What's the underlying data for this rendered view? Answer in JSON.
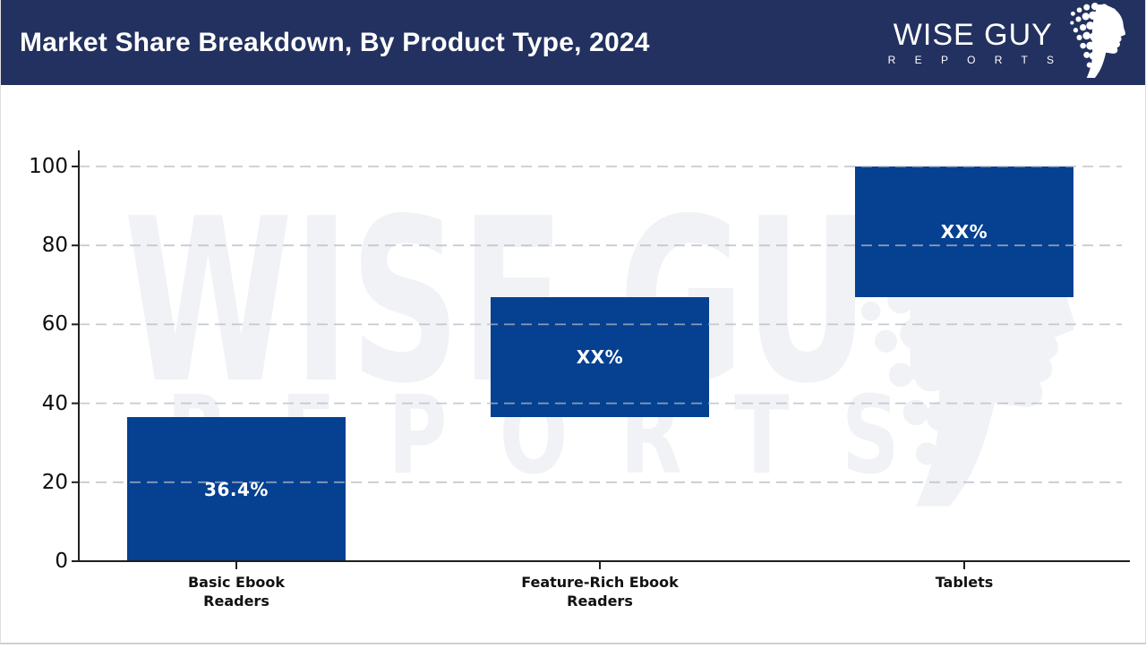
{
  "header": {
    "title": "Market Share Breakdown, By Product Type, 2024",
    "logo": {
      "name": "WISE GUY",
      "sub": "R E P O R T S"
    }
  },
  "watermark": {
    "line1": "WISE GUY",
    "line2": "R E P O R T S"
  },
  "chart_data": {
    "type": "bar",
    "variant": "waterfall",
    "title": "Market Share Breakdown, By Product Type, 2024",
    "categories": [
      "Basic Ebook Readers",
      "Feature-Rich Ebook Readers",
      "Tablets"
    ],
    "category_label_lines": [
      [
        "Basic Ebook",
        "Readers"
      ],
      [
        "Feature-Rich Ebook",
        "Readers"
      ],
      [
        "Tablets"
      ]
    ],
    "segments": [
      {
        "category": "Basic Ebook Readers",
        "from": 0,
        "to": 36.4,
        "label": "36.4%"
      },
      {
        "category": "Feature-Rich Ebook Readers",
        "from": 36.4,
        "to": 66.8,
        "label": "XX%"
      },
      {
        "category": "Tablets",
        "from": 66.8,
        "to": 100,
        "label": "XX%"
      }
    ],
    "xlabel": "",
    "ylabel": "",
    "yticks": [
      0,
      20,
      40,
      60,
      80,
      100
    ],
    "ylim": [
      0,
      104
    ],
    "grid": "dashed-horizontal",
    "legend": "none"
  },
  "colors": {
    "header_bg": "#22315f",
    "bar": "#054091",
    "value_label": "#ffffff",
    "grid": "#b3b9c4",
    "axis": "#1f1f1f",
    "watermark": "#f1f2f6",
    "page_bg": "#ffffff",
    "border": "#d6d6d6"
  }
}
